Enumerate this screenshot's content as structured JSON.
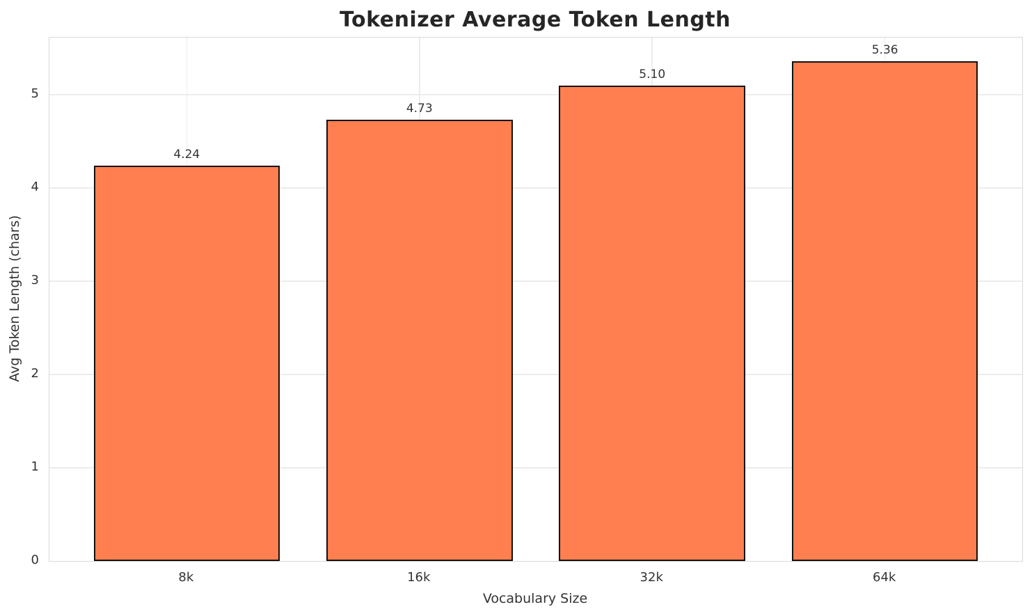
{
  "chart_data": {
    "type": "bar",
    "title": "Tokenizer Average Token Length",
    "xlabel": "Vocabulary Size",
    "ylabel": "Avg Token Length (chars)",
    "categories": [
      "8k",
      "16k",
      "32k",
      "64k"
    ],
    "values": [
      4.24,
      4.73,
      5.1,
      5.36
    ],
    "value_labels": [
      "4.24",
      "4.73",
      "5.10",
      "5.36"
    ],
    "yticks": [
      0,
      1,
      2,
      3,
      4,
      5
    ],
    "ytick_labels": [
      "0",
      "1",
      "2",
      "3",
      "4",
      "5"
    ],
    "ylim": [
      0,
      5.613
    ],
    "grid": "light horizontal and vertical gridlines",
    "legend": "none",
    "bar_color": "#FF7F50",
    "bar_edge_color": "#111111",
    "grid_color": "#ececec",
    "spine_color": "#d9d9d9",
    "text_color": "#333333",
    "title_color": "#262626",
    "background_color": "#ffffff"
  }
}
